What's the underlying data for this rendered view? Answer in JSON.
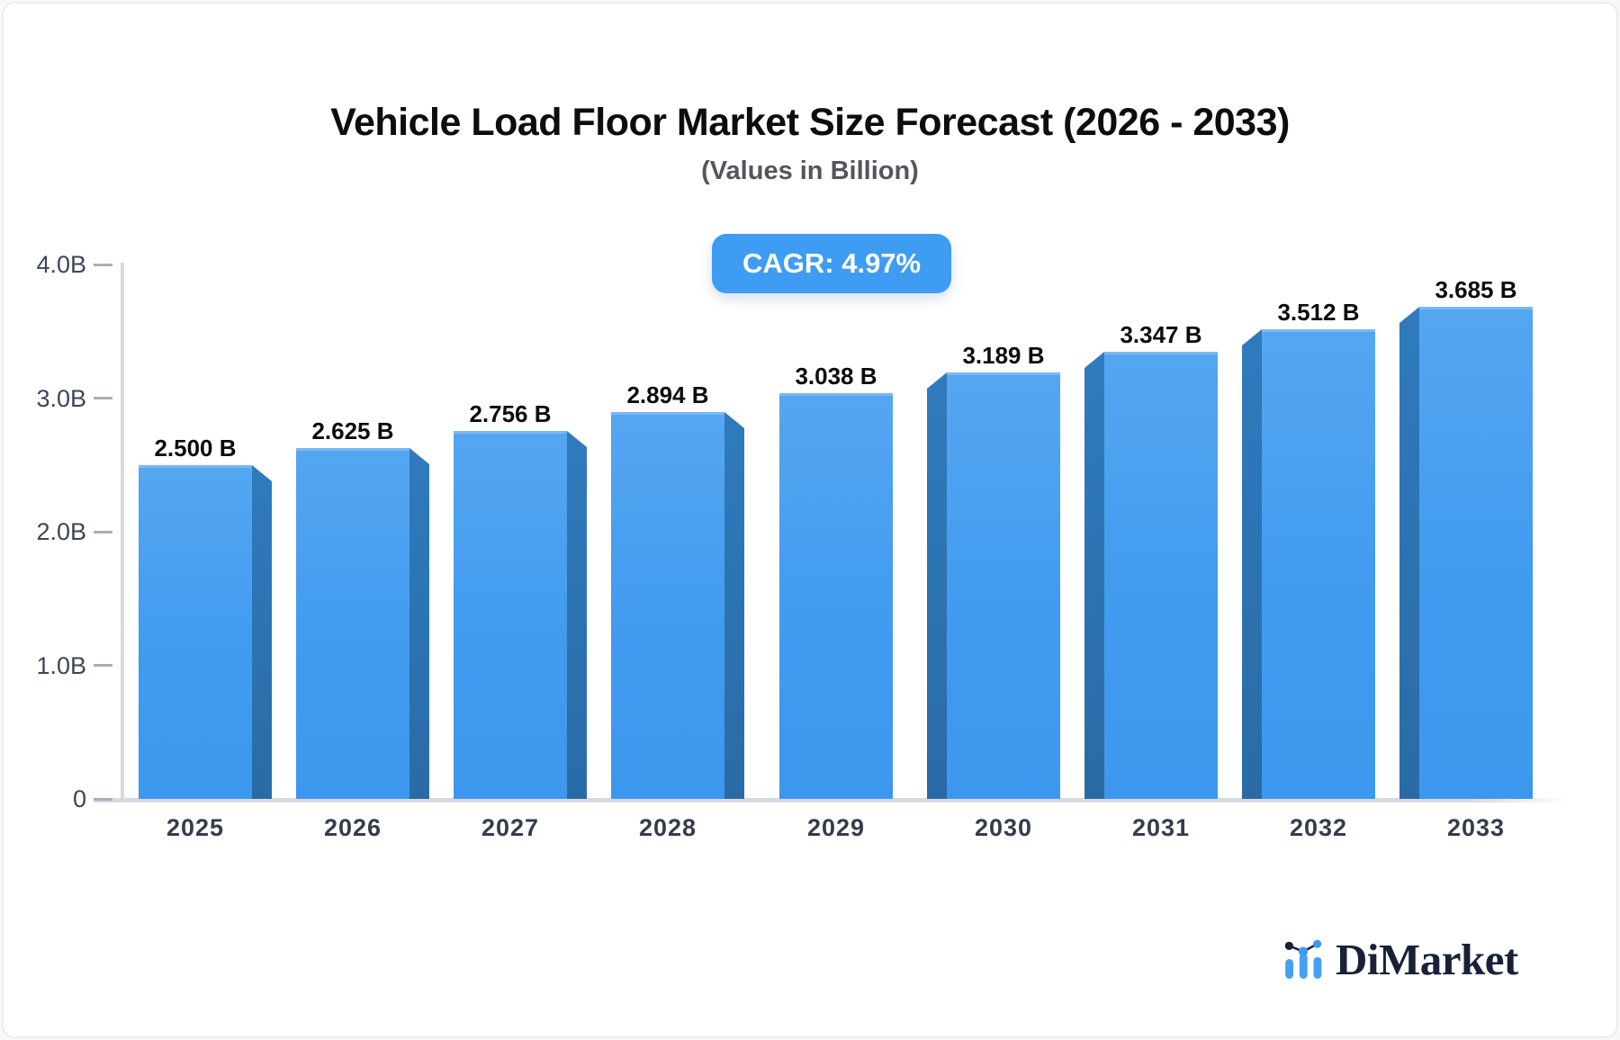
{
  "header": {
    "title": "Vehicle Load Floor Market Size Forecast (2026 - 2033)",
    "subtitle": "(Values in Billion)",
    "cagr_label": "CAGR: 4.97%"
  },
  "chart_data": {
    "type": "bar",
    "title": "Vehicle Load Floor Market Size Forecast (2026 - 2033)",
    "subtitle": "(Values in Billion)",
    "annotation": "CAGR: 4.97%",
    "categories": [
      "2025",
      "2026",
      "2027",
      "2028",
      "2029",
      "2030",
      "2031",
      "2032",
      "2033"
    ],
    "values": [
      2.5,
      2.625,
      2.756,
      2.894,
      3.038,
      3.189,
      3.347,
      3.512,
      3.685
    ],
    "value_labels": [
      "2.500 B",
      "2.625 B",
      "2.756 B",
      "2.894 B",
      "3.038 B",
      "3.189 B",
      "3.347 B",
      "3.512 B",
      "3.685 B"
    ],
    "unit": "Billion",
    "xlabel": "",
    "ylabel": "",
    "ylim": [
      0,
      4.0
    ],
    "y_ticks": [
      {
        "value": 4.0,
        "label": "4.0B"
      },
      {
        "value": 3.0,
        "label": "3.0B"
      },
      {
        "value": 2.0,
        "label": "2.0B"
      },
      {
        "value": 1.0,
        "label": "1.0B"
      },
      {
        "value": 0.0,
        "label": "0"
      }
    ],
    "grid": "off",
    "legend": "none",
    "bar_style": "3d-extruded"
  },
  "colors": {
    "badge_bg": "#3e9cf2",
    "bar_face_top": "#55a6f1",
    "bar_face_bottom": "#3d97ee",
    "bar_side": "#2d76b6",
    "axis_line": "#d6dade",
    "tick_text": "#3d4657",
    "year_text": "#333d4e",
    "value_text": "#0b0c0e",
    "logo_navy": "#182138",
    "logo_blue": "#45a0f4"
  },
  "footer": {
    "brand": "DiMarket"
  },
  "icons": {
    "logo_icon": "mini-bar-chart-with-dots"
  }
}
